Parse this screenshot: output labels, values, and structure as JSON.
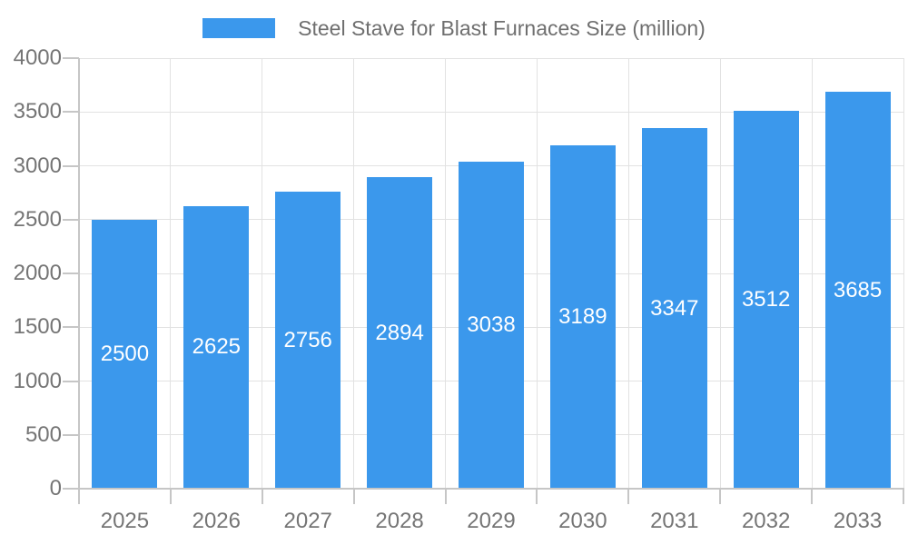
{
  "legend": {
    "label": "Steel Stave for Blast Furnaces Size (million)"
  },
  "chart_data": {
    "type": "bar",
    "title": "Steel Stave for Blast Furnaces Size (million)",
    "categories": [
      "2025",
      "2026",
      "2027",
      "2028",
      "2029",
      "2030",
      "2031",
      "2032",
      "2033"
    ],
    "values": [
      2500,
      2625,
      2756,
      2894,
      3038,
      3189,
      3347,
      3512,
      3685
    ],
    "xlabel": "",
    "ylabel": "",
    "ylim": [
      0,
      4000
    ],
    "ytick_step": 500,
    "yticks": [
      0,
      500,
      1000,
      1500,
      2000,
      2500,
      3000,
      3500,
      4000
    ],
    "grid": true,
    "legend_position": "top-center",
    "bar_labels_inside": true,
    "colors": {
      "bar": "#3B98EC",
      "bar_label": "#FFFFFF",
      "grid": "#E2E2E2",
      "axis_line": "#C6C6C6",
      "axis_text": "#757575",
      "legend_text": "#6F6F6F",
      "background": "#FFFFFF"
    }
  }
}
